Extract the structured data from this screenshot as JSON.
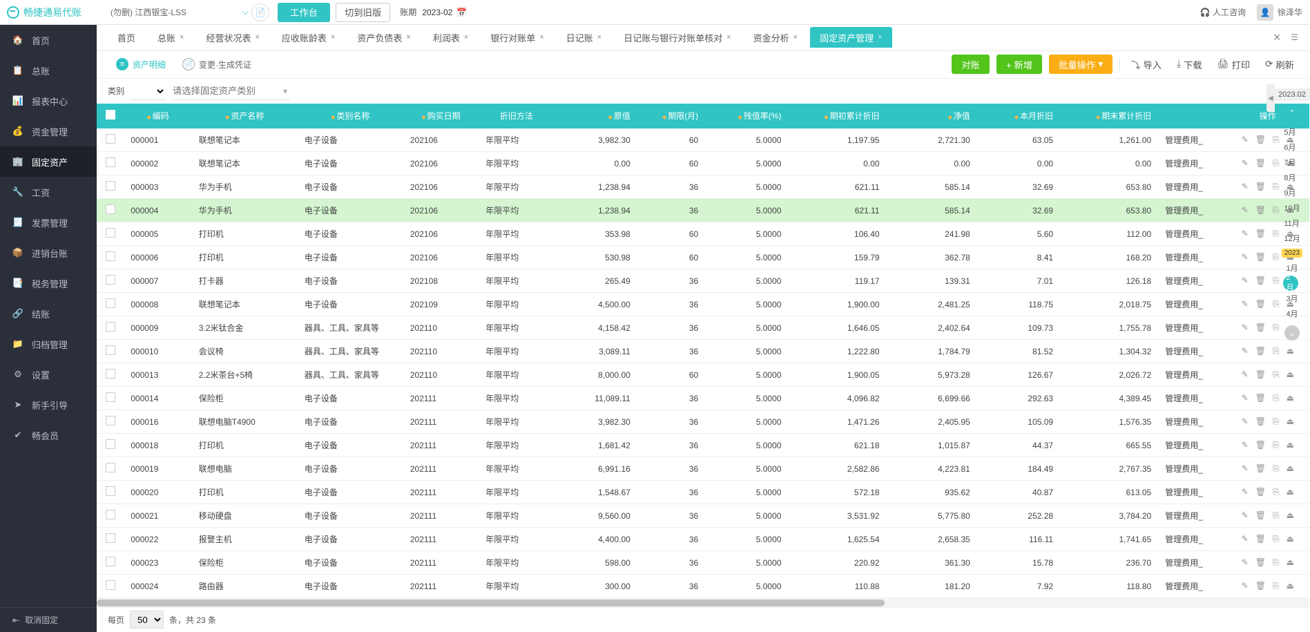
{
  "topbar": {
    "logo_text": "畅捷通易代账",
    "company": "(勿删) 江西银宝-LSS",
    "workspace_btn": "工作台",
    "old_btn": "切到旧版",
    "period_label": "账期",
    "period_value": "2023-02",
    "support": "人工咨询",
    "user": "徐泽华"
  },
  "sidebar": {
    "items": [
      {
        "label": "首页",
        "icon": "🏠"
      },
      {
        "label": "总账",
        "icon": "📋"
      },
      {
        "label": "报表中心",
        "icon": "📊"
      },
      {
        "label": "资金管理",
        "icon": "💰"
      },
      {
        "label": "固定资产",
        "icon": "🏢"
      },
      {
        "label": "工资",
        "icon": "🔧"
      },
      {
        "label": "发票管理",
        "icon": "🧾"
      },
      {
        "label": "进销台账",
        "icon": "📦"
      },
      {
        "label": "税务管理",
        "icon": "📑"
      },
      {
        "label": "结账",
        "icon": "🔗"
      },
      {
        "label": "归档管理",
        "icon": "📁"
      },
      {
        "label": "设置",
        "icon": "⚙"
      },
      {
        "label": "新手引导",
        "icon": "➤"
      },
      {
        "label": "畅会员",
        "icon": "✔"
      }
    ],
    "active_index": 4,
    "footer": "取消固定"
  },
  "tabs": {
    "items": [
      {
        "label": "首页",
        "closable": false
      },
      {
        "label": "总账",
        "closable": true
      },
      {
        "label": "经营状况表",
        "closable": true
      },
      {
        "label": "应收账龄表",
        "closable": true
      },
      {
        "label": "资产负债表",
        "closable": true
      },
      {
        "label": "利润表",
        "closable": true
      },
      {
        "label": "银行对账单",
        "closable": true
      },
      {
        "label": "日记账",
        "closable": true
      },
      {
        "label": "日记账与银行对账单核对",
        "closable": true
      },
      {
        "label": "资金分析",
        "closable": true
      },
      {
        "label": "固定资产管理",
        "closable": true
      }
    ],
    "active_index": 10
  },
  "subtabs": {
    "a": "资产明细",
    "b": "变更·生成凭证"
  },
  "actions": {
    "match": "对账",
    "add": "+ 新增",
    "batch": "批量操作",
    "import": "导入",
    "download": "下载",
    "print": "打印",
    "refresh": "刷新"
  },
  "filter": {
    "label": "类别",
    "placeholder": "请选择固定资产类别"
  },
  "table": {
    "headers": [
      "编码",
      "资产名称",
      "类别名称",
      "购买日期",
      "折旧方法",
      "原值",
      "期限(月)",
      "残值率(%)",
      "期初累计折旧",
      "净值",
      "本月折旧",
      "期末累计折旧",
      "",
      "操作"
    ],
    "highlight_index": 3,
    "rows": [
      {
        "code": "000001",
        "name": "联想笔记本",
        "cat": "电子设备",
        "date": "202106",
        "method": "年限平均",
        "orig": "3,982.30",
        "months": "60",
        "rate": "5.0000",
        "begin": "1,197.95",
        "net": "2,721.30",
        "month": "63.05",
        "end": "1,261.00",
        "misc": "管理费用_"
      },
      {
        "code": "000002",
        "name": "联想笔记本",
        "cat": "电子设备",
        "date": "202106",
        "method": "年限平均",
        "orig": "0.00",
        "months": "60",
        "rate": "5.0000",
        "begin": "0.00",
        "net": "0.00",
        "month": "0.00",
        "end": "0.00",
        "misc": "管理费用_"
      },
      {
        "code": "000003",
        "name": "华为手机",
        "cat": "电子设备",
        "date": "202106",
        "method": "年限平均",
        "orig": "1,238.94",
        "months": "36",
        "rate": "5.0000",
        "begin": "621.11",
        "net": "585.14",
        "month": "32.69",
        "end": "653.80",
        "misc": "管理费用_"
      },
      {
        "code": "000004",
        "name": "华为手机",
        "cat": "电子设备",
        "date": "202106",
        "method": "年限平均",
        "orig": "1,238.94",
        "months": "36",
        "rate": "5.0000",
        "begin": "621.11",
        "net": "585.14",
        "month": "32.69",
        "end": "653.80",
        "misc": "管理费用_"
      },
      {
        "code": "000005",
        "name": "打印机",
        "cat": "电子设备",
        "date": "202106",
        "method": "年限平均",
        "orig": "353.98",
        "months": "60",
        "rate": "5.0000",
        "begin": "106.40",
        "net": "241.98",
        "month": "5.60",
        "end": "112.00",
        "misc": "管理费用_"
      },
      {
        "code": "000006",
        "name": "打印机",
        "cat": "电子设备",
        "date": "202106",
        "method": "年限平均",
        "orig": "530.98",
        "months": "60",
        "rate": "5.0000",
        "begin": "159.79",
        "net": "362.78",
        "month": "8.41",
        "end": "168.20",
        "misc": "管理费用_"
      },
      {
        "code": "000007",
        "name": "打卡器",
        "cat": "电子设备",
        "date": "202108",
        "method": "年限平均",
        "orig": "265.49",
        "months": "36",
        "rate": "5.0000",
        "begin": "119.17",
        "net": "139.31",
        "month": "7.01",
        "end": "126.18",
        "misc": "管理费用_"
      },
      {
        "code": "000008",
        "name": "联想笔记本",
        "cat": "电子设备",
        "date": "202109",
        "method": "年限平均",
        "orig": "4,500.00",
        "months": "36",
        "rate": "5.0000",
        "begin": "1,900.00",
        "net": "2,481.25",
        "month": "118.75",
        "end": "2,018.75",
        "misc": "管理费用_"
      },
      {
        "code": "000009",
        "name": "3.2米钛合金",
        "cat": "器具、工具、家具等",
        "date": "202110",
        "method": "年限平均",
        "orig": "4,158.42",
        "months": "36",
        "rate": "5.0000",
        "begin": "1,646.05",
        "net": "2,402.64",
        "month": "109.73",
        "end": "1,755.78",
        "misc": "管理费用_"
      },
      {
        "code": "000010",
        "name": "会议椅",
        "cat": "器具、工具、家具等",
        "date": "202110",
        "method": "年限平均",
        "orig": "3,089.11",
        "months": "36",
        "rate": "5.0000",
        "begin": "1,222.80",
        "net": "1,784.79",
        "month": "81.52",
        "end": "1,304.32",
        "misc": "管理费用_"
      },
      {
        "code": "000013",
        "name": "2.2米茶台+5椅",
        "cat": "器具、工具、家具等",
        "date": "202110",
        "method": "年限平均",
        "orig": "8,000.00",
        "months": "60",
        "rate": "5.0000",
        "begin": "1,900.05",
        "net": "5,973.28",
        "month": "126.67",
        "end": "2,026.72",
        "misc": "管理费用_"
      },
      {
        "code": "000014",
        "name": "保险柜",
        "cat": "电子设备",
        "date": "202111",
        "method": "年限平均",
        "orig": "11,089.11",
        "months": "36",
        "rate": "5.0000",
        "begin": "4,096.82",
        "net": "6,699.66",
        "month": "292.63",
        "end": "4,389.45",
        "misc": "管理费用_"
      },
      {
        "code": "000016",
        "name": "联想电脑T4900",
        "cat": "电子设备",
        "date": "202111",
        "method": "年限平均",
        "orig": "3,982.30",
        "months": "36",
        "rate": "5.0000",
        "begin": "1,471.26",
        "net": "2,405.95",
        "month": "105.09",
        "end": "1,576.35",
        "misc": "管理费用_"
      },
      {
        "code": "000018",
        "name": "打印机",
        "cat": "电子设备",
        "date": "202111",
        "method": "年限平均",
        "orig": "1,681.42",
        "months": "36",
        "rate": "5.0000",
        "begin": "621.18",
        "net": "1,015.87",
        "month": "44.37",
        "end": "665.55",
        "misc": "管理费用_"
      },
      {
        "code": "000019",
        "name": "联想电脑",
        "cat": "电子设备",
        "date": "202111",
        "method": "年限平均",
        "orig": "6,991.16",
        "months": "36",
        "rate": "5.0000",
        "begin": "2,582.86",
        "net": "4,223.81",
        "month": "184.49",
        "end": "2,767.35",
        "misc": "管理费用_"
      },
      {
        "code": "000020",
        "name": "打印机",
        "cat": "电子设备",
        "date": "202111",
        "method": "年限平均",
        "orig": "1,548.67",
        "months": "36",
        "rate": "5.0000",
        "begin": "572.18",
        "net": "935.62",
        "month": "40.87",
        "end": "613.05",
        "misc": "管理费用_"
      },
      {
        "code": "000021",
        "name": "移动硬盘",
        "cat": "电子设备",
        "date": "202111",
        "method": "年限平均",
        "orig": "9,560.00",
        "months": "36",
        "rate": "5.0000",
        "begin": "3,531.92",
        "net": "5,775.80",
        "month": "252.28",
        "end": "3,784.20",
        "misc": "管理费用_"
      },
      {
        "code": "000022",
        "name": "报警主机",
        "cat": "电子设备",
        "date": "202111",
        "method": "年限平均",
        "orig": "4,400.00",
        "months": "36",
        "rate": "5.0000",
        "begin": "1,625.54",
        "net": "2,658.35",
        "month": "116.11",
        "end": "1,741.65",
        "misc": "管理费用_"
      },
      {
        "code": "000023",
        "name": "保险柜",
        "cat": "电子设备",
        "date": "202111",
        "method": "年限平均",
        "orig": "598.00",
        "months": "36",
        "rate": "5.0000",
        "begin": "220.92",
        "net": "361.30",
        "month": "15.78",
        "end": "236.70",
        "misc": "管理费用_"
      },
      {
        "code": "000024",
        "name": "路由器",
        "cat": "电子设备",
        "date": "202111",
        "method": "年限平均",
        "orig": "300.00",
        "months": "36",
        "rate": "5.0000",
        "begin": "110.88",
        "net": "181.20",
        "month": "7.92",
        "end": "118.80",
        "misc": "管理费用_"
      }
    ]
  },
  "pager": {
    "prefix": "每页",
    "size": "50",
    "suffix": "条，共 23 条"
  },
  "rail": {
    "period": "2023.02",
    "months_top": [
      "5月",
      "6月",
      "7月",
      "8月",
      "9月",
      "10月",
      "11月",
      "12月"
    ],
    "year": "2023",
    "months_bottom": [
      "1月",
      "2月",
      "3月",
      "4月"
    ],
    "active_bottom_index": 1
  },
  "colors": {
    "primary": "#30c4c4",
    "sidebar_bg": "#2a2f3a",
    "green": "#52c41a",
    "orange": "#faad14",
    "highlight": "#d4f5d0"
  }
}
